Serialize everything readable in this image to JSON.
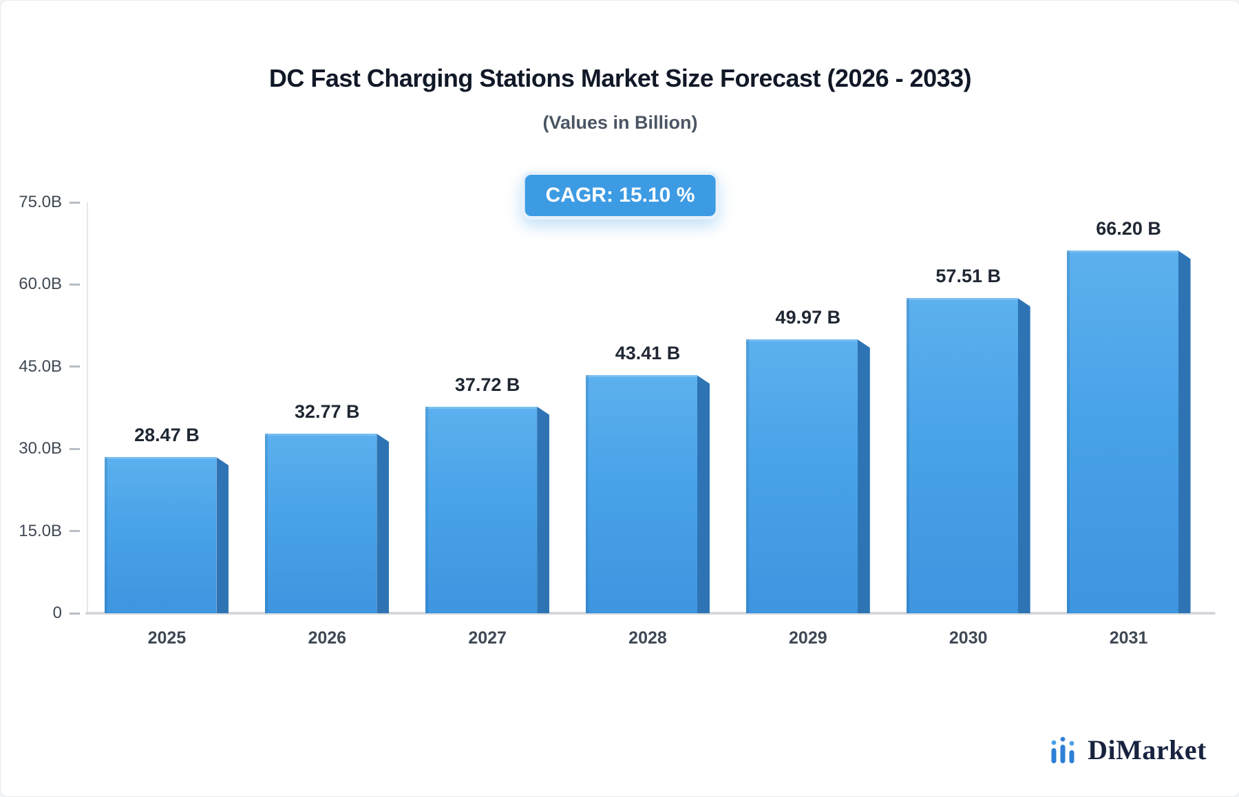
{
  "title": "DC Fast Charging Stations Market Size Forecast (2026 - 2033)",
  "subtitle": "(Values in Billion)",
  "badge": {
    "label": "CAGR: 15.10 %"
  },
  "logo": {
    "text": "DiMarket",
    "icon": "bar-chart-icon"
  },
  "colors": {
    "bar_front_top": "#5cb0ee",
    "bar_front_bottom": "#3e95e0",
    "bar_side": "#2e74b5",
    "badge_background": "#3d9be3",
    "title_text": "#111827",
    "axis_text": "#3f4854",
    "logo_text": "#17233f",
    "logo_icon_blue": "#2f7fd6"
  },
  "chart_data": {
    "type": "bar",
    "title": "DC Fast Charging Stations Market Size Forecast (2026 - 2033)",
    "subtitle": "(Values in Billion)",
    "xlabel": "",
    "ylabel": "",
    "units": "Billion USD",
    "categories": [
      "2025",
      "2026",
      "2027",
      "2028",
      "2029",
      "2030",
      "2031"
    ],
    "values": [
      28.47,
      32.77,
      37.72,
      43.41,
      49.97,
      57.51,
      66.2
    ],
    "value_labels": [
      "28.47 B",
      "32.77 B",
      "37.72 B",
      "43.41 B",
      "49.97 B",
      "57.51 B",
      "66.20 B"
    ],
    "ylim": [
      0,
      75
    ],
    "yticks": [
      {
        "label": "75.0B",
        "value": 75
      },
      {
        "label": "60.0B",
        "value": 60
      },
      {
        "label": "45.0B",
        "value": 45
      },
      {
        "label": "30.0B",
        "value": 30
      },
      {
        "label": "15.0B",
        "value": 15
      },
      {
        "label": "0",
        "value": 0
      }
    ],
    "grid": false,
    "legend": false,
    "annotations": [
      "CAGR: 15.10 %"
    ]
  }
}
